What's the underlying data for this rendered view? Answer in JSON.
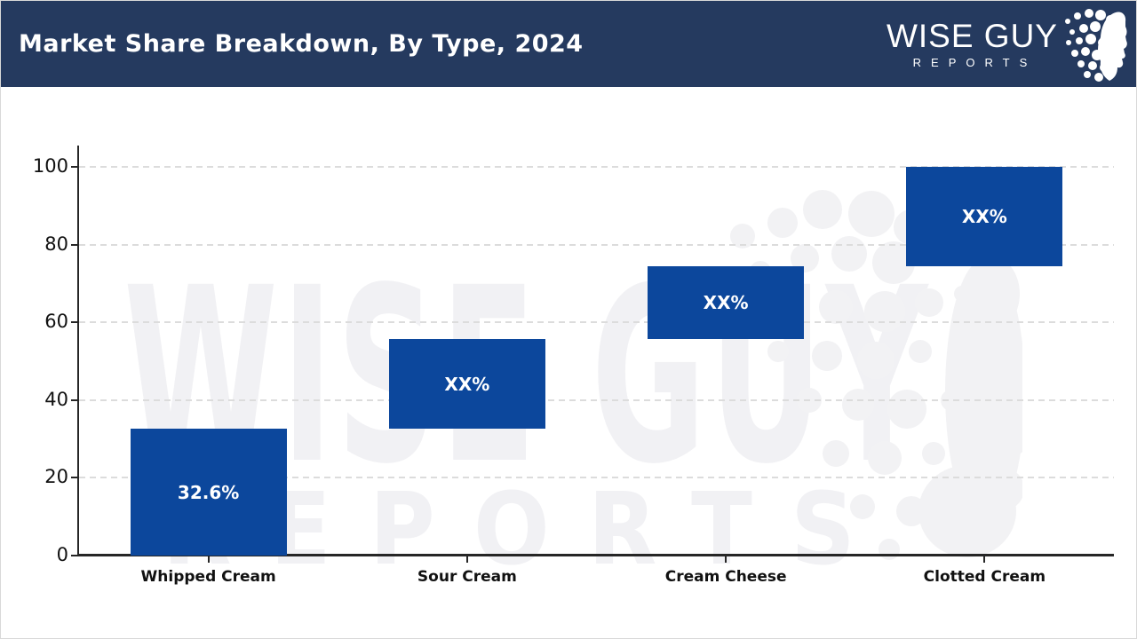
{
  "header": {
    "title": "Market Share Breakdown, By Type, 2024",
    "bg_color": "#253a5f",
    "logo": {
      "line1": "WISE GUY",
      "line2": "REPORTS"
    }
  },
  "watermark": {
    "line1": "WISE GUY",
    "line2": "REPORTS"
  },
  "chart_data": {
    "type": "bar",
    "variant": "waterfall-floating-bars",
    "title": "Market Share Breakdown, By Type, 2024",
    "categories": [
      "Whipped Cream",
      "Sour Cream",
      "Cream Cheese",
      "Clotted Cream"
    ],
    "segments": [
      {
        "category": "Whipped Cream",
        "start": 0,
        "end": 32.6,
        "label": "32.6%"
      },
      {
        "category": "Sour Cream",
        "start": 32.6,
        "end": 55.7,
        "label": "XX%"
      },
      {
        "category": "Cream Cheese",
        "start": 55.7,
        "end": 74.4,
        "label": "XX%"
      },
      {
        "category": "Clotted Cream",
        "start": 74.4,
        "end": 100,
        "label": "XX%"
      }
    ],
    "xlabel": "",
    "ylabel": "",
    "ylim": [
      0,
      100
    ],
    "yticks": [
      0,
      20,
      40,
      60,
      80,
      100
    ],
    "grid": true,
    "grid_style": "dashed",
    "legend": false,
    "bar_color": "#0c479c",
    "label_color": "#ffffff"
  }
}
